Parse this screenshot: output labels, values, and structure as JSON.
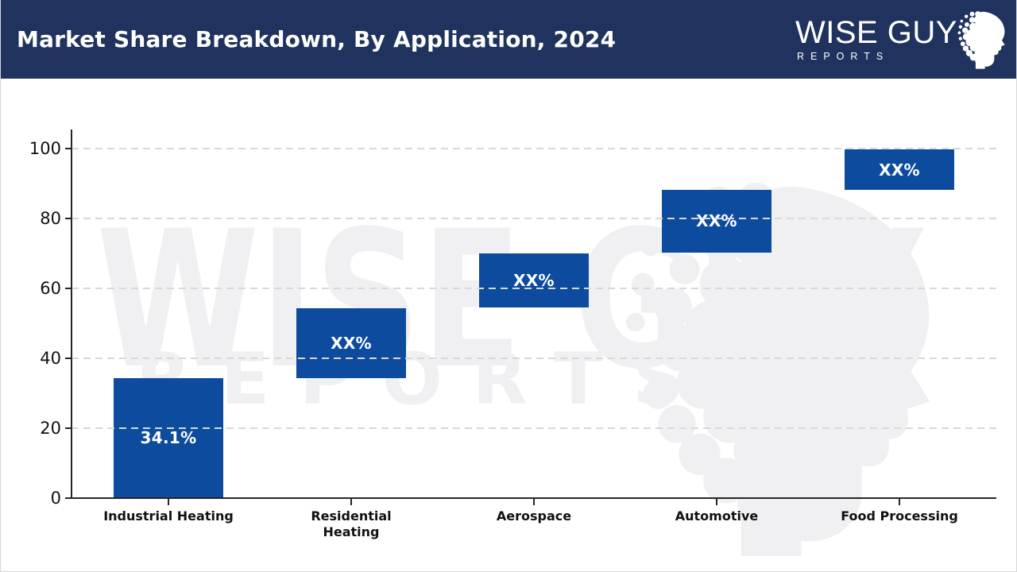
{
  "header": {
    "title": "Market Share Breakdown, By Application, 2024",
    "logo": {
      "line1": "WISE GUY",
      "line2": "REPORTS"
    }
  },
  "watermark": {
    "line1": "WISE GUY",
    "line2": "REPORTS"
  },
  "colors": {
    "header_bg": "#20335e",
    "header_text": "#ffffff",
    "bar_fill": "#0c4b9e",
    "bar_label_text": "#ffffff",
    "grid_line": "#d8d8d8",
    "axis_line": "#262626",
    "tick_text": "#111111",
    "watermark": "#f0f0f2"
  },
  "chart_data": {
    "type": "bar",
    "subtype": "waterfall",
    "title": "Market Share Breakdown, By Application, 2024",
    "categories": [
      "Industrial Heating",
      "Residential Heating",
      "Aerospace",
      "Automotive",
      "Food Processing"
    ],
    "category_label_lines": [
      [
        "Industrial Heating"
      ],
      [
        "Residential",
        "Heating"
      ],
      [
        "Aerospace"
      ],
      [
        "Automotive"
      ],
      [
        "Food Processing"
      ]
    ],
    "bars": [
      {
        "category": "Industrial Heating",
        "base": 0,
        "top": 34.1,
        "label": "34.1%"
      },
      {
        "category": "Residential Heating",
        "base": 34.3,
        "top": 54.1,
        "label": "XX%"
      },
      {
        "category": "Aerospace",
        "base": 54.4,
        "top": 70,
        "label": "XX%"
      },
      {
        "category": "Automotive",
        "base": 70.2,
        "top": 88,
        "label": "XX%"
      },
      {
        "category": "Food Processing",
        "base": 88,
        "top": 99.6,
        "label": "XX%"
      }
    ],
    "xlabel": "",
    "ylabel": "",
    "ylim": [
      0,
      100
    ],
    "yticks": [
      0,
      20,
      40,
      60,
      80,
      100
    ],
    "grid": "horizontal-dashed",
    "legend": "none"
  }
}
